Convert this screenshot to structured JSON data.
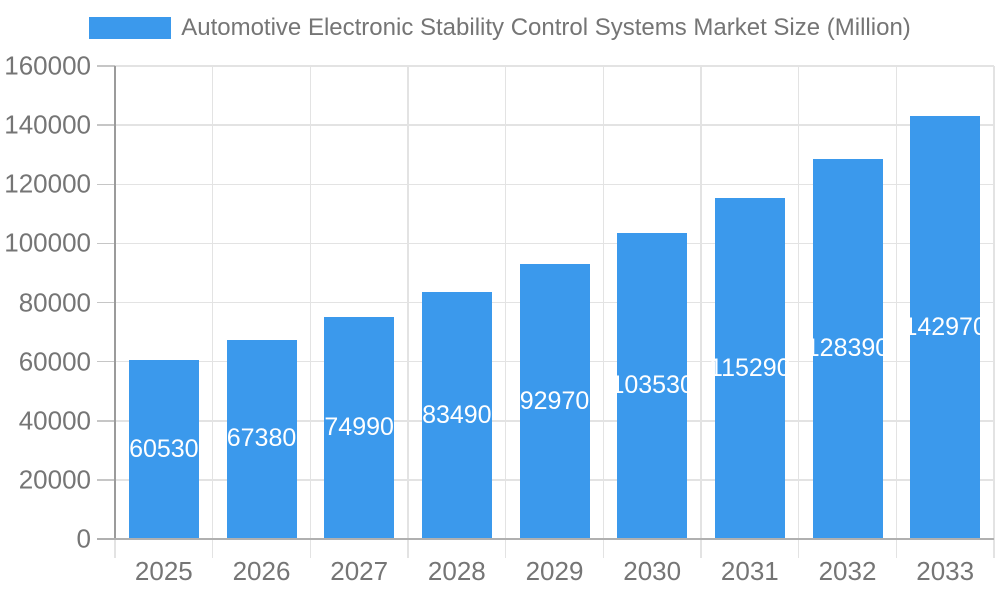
{
  "legend": {
    "label": "Automotive Electronic Stability Control Systems Market Size (Million)"
  },
  "chart_data": {
    "type": "bar",
    "title": "Automotive Electronic Stability Control Systems Market Size (Million)",
    "categories": [
      "2025",
      "2026",
      "2027",
      "2028",
      "2029",
      "2030",
      "2031",
      "2032",
      "2033"
    ],
    "values": [
      60530,
      67380,
      74990,
      83490,
      92970,
      103530,
      115290,
      128390,
      142970
    ],
    "value_labels": [
      "60530",
      "67380",
      "74990",
      "83490",
      "92970",
      "103530",
      "115290",
      "128390",
      "142970"
    ],
    "xlabel": "",
    "ylabel": "",
    "ylim": [
      0,
      160000
    ],
    "ytick_step": 20000,
    "ytick_labels": [
      "0",
      "20000",
      "40000",
      "60000",
      "80000",
      "100000",
      "120000",
      "140000",
      "160000"
    ],
    "bar_color": "#3B99EC",
    "value_label_color": "#ffffff",
    "grid": true,
    "legend_position": "top"
  }
}
